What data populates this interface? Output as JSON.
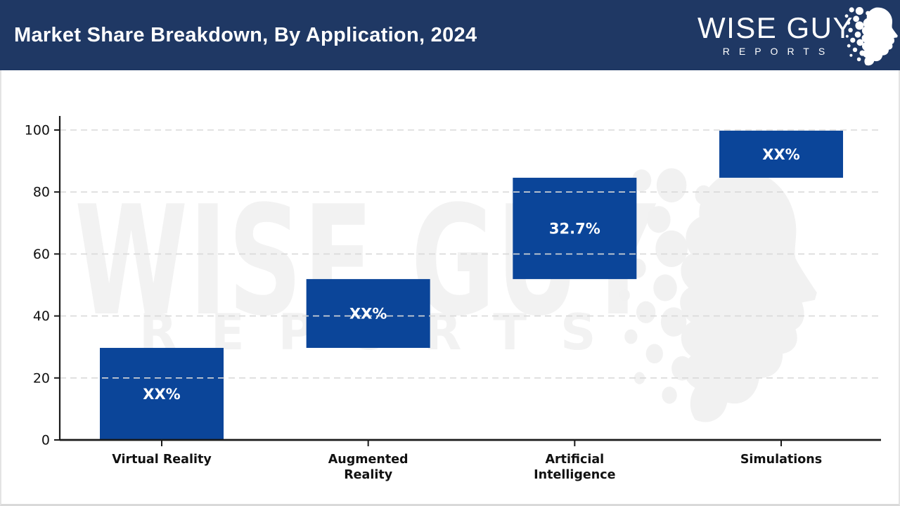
{
  "header": {
    "title": "Market Share Breakdown, By Application, 2024",
    "logo": {
      "brand": "WISE GUY",
      "sub": "REPORTS"
    }
  },
  "watermark": {
    "brand": "WISE GUY",
    "sub": "REPORTS"
  },
  "chart_data": {
    "type": "bar",
    "subtype": "waterfall-floating-bars",
    "title": "Market Share Breakdown, By Application, 2024",
    "categories": [
      "Virtual Reality",
      "Augmented Reality",
      "Artificial Intelligence",
      "Simulations"
    ],
    "bars": [
      {
        "category": "Virtual Reality",
        "start": 0,
        "end": 29.7,
        "label": "XX%"
      },
      {
        "category": "Augmented Reality",
        "start": 29.7,
        "end": 51.9,
        "label": "XX%"
      },
      {
        "category": "Artificial Intelligence",
        "start": 51.9,
        "end": 84.6,
        "label": "32.7%"
      },
      {
        "category": "Simulations",
        "start": 84.6,
        "end": 99.8,
        "label": "XX%"
      }
    ],
    "xlabel": "",
    "ylabel": "",
    "ylim": [
      0,
      100
    ],
    "yticks": [
      0,
      20,
      40,
      60,
      80,
      100
    ],
    "grid": "horizontal-dashed",
    "legend": "none",
    "colors": {
      "bar": "#0b4599",
      "bar_label": "#ffffff",
      "axis": "#1a1a1a",
      "tick_label": "#111111",
      "gridline": "#d9d9d9",
      "header_bg": "#1f3864",
      "watermark": "#f2f2f2"
    }
  }
}
